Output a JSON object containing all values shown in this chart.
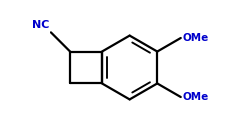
{
  "background_color": "#ffffff",
  "bond_color": "#000000",
  "nc_color": "#0000cc",
  "ome_color": "#0000cc",
  "line_width": 1.6,
  "figsize": [
    2.47,
    1.35
  ],
  "dpi": 100,
  "xlim": [
    -0.1,
    1.1
  ],
  "ylim": [
    -0.05,
    1.05
  ]
}
